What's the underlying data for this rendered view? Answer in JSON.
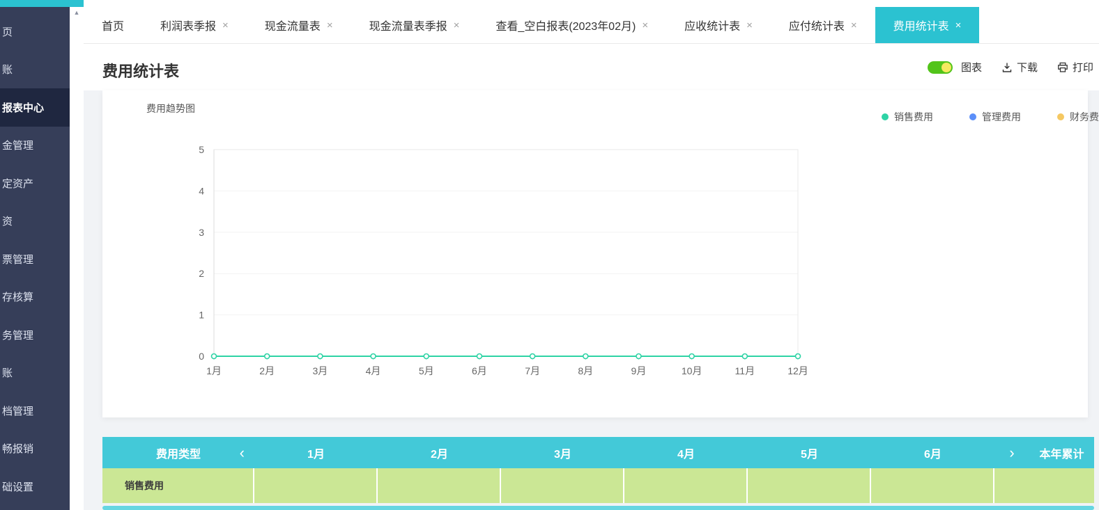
{
  "colors": {
    "accent_teal": "#2bc2d1",
    "table_header_teal": "#43c9d8",
    "sidebar_bg": "#363e59",
    "sidebar_active_bg": "#1f2740",
    "row_green": "#cbe795",
    "toggle_track": "#52c41a",
    "toggle_knob": "#f5e960",
    "table_scrollbar": "#66d6e2"
  },
  "sidebar": {
    "scroll_up_arrow": "▲",
    "items": [
      {
        "label": "页",
        "active": false
      },
      {
        "label": "账",
        "active": false
      },
      {
        "label": "报表中心",
        "active": true
      },
      {
        "label": "金管理",
        "active": false
      },
      {
        "label": "定资产",
        "active": false
      },
      {
        "label": "资",
        "active": false
      },
      {
        "label": "票管理",
        "active": false
      },
      {
        "label": "存核算",
        "active": false
      },
      {
        "label": "务管理",
        "active": false
      },
      {
        "label": "账",
        "active": false
      },
      {
        "label": "档管理",
        "active": false
      },
      {
        "label": "畅报销",
        "active": false
      },
      {
        "label": "础设置",
        "active": false
      }
    ]
  },
  "tabs": [
    {
      "label": "首页",
      "closable": false,
      "active": false
    },
    {
      "label": "利润表季报",
      "closable": true,
      "active": false
    },
    {
      "label": "现金流量表",
      "closable": true,
      "active": false
    },
    {
      "label": "现金流量表季报",
      "closable": true,
      "active": false
    },
    {
      "label": "查看_空白报表(2023年02月)",
      "closable": true,
      "active": false
    },
    {
      "label": "应收统计表",
      "closable": true,
      "active": false
    },
    {
      "label": "应付统计表",
      "closable": true,
      "active": false
    },
    {
      "label": "费用统计表",
      "closable": true,
      "active": true
    }
  ],
  "page": {
    "title": "费用统计表",
    "toggle_label": "图表",
    "toggle_on": true,
    "download_label": "下载",
    "print_label": "打印"
  },
  "chart_data": {
    "type": "line",
    "title": "费用趋势图",
    "categories": [
      "1月",
      "2月",
      "3月",
      "4月",
      "5月",
      "6月",
      "7月",
      "8月",
      "9月",
      "10月",
      "11月",
      "12月"
    ],
    "series": [
      {
        "name": "销售费用",
        "color": "#2ed3a5",
        "values": [
          0,
          0,
          0,
          0,
          0,
          0,
          0,
          0,
          0,
          0,
          0,
          0
        ]
      },
      {
        "name": "管理费用",
        "color": "#5b8ff9",
        "values": [
          0,
          0,
          0,
          0,
          0,
          0,
          0,
          0,
          0,
          0,
          0,
          0
        ]
      },
      {
        "name": "财务费用",
        "color": "#f5c862",
        "values": [
          0,
          0,
          0,
          0,
          0,
          0,
          0,
          0,
          0,
          0,
          0,
          0
        ]
      }
    ],
    "xlabel": "",
    "ylabel": "",
    "ylim": [
      0,
      5
    ],
    "yticks": [
      0,
      1,
      2,
      3,
      4,
      5
    ],
    "grid": true,
    "legend_position": "top-right"
  },
  "table": {
    "columns": [
      "费用类型",
      "1月",
      "2月",
      "3月",
      "4月",
      "5月",
      "6月",
      "本年累计"
    ],
    "nav_left": "‹",
    "nav_right": "›",
    "rows": [
      {
        "label": "销售费用",
        "values": [
          "",
          "",
          "",
          "",
          "",
          "",
          ""
        ]
      }
    ]
  }
}
